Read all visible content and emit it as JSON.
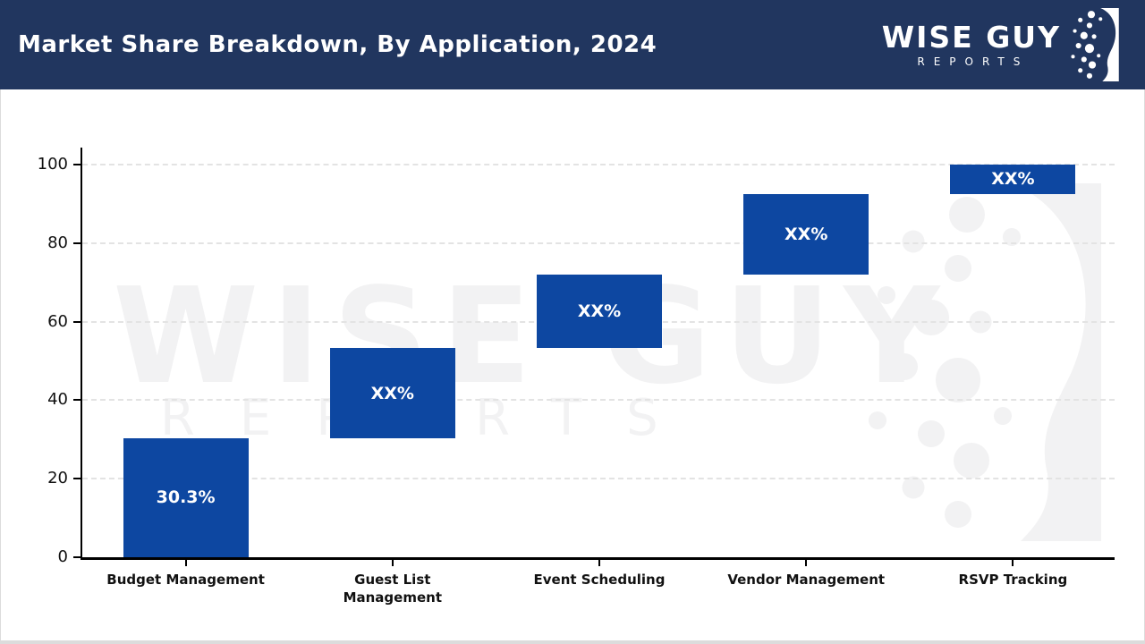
{
  "header": {
    "title": "Market Share Breakdown, By Application, 2024",
    "bg_color": "#21365f",
    "text_color": "#ffffff",
    "logo": {
      "primary": "WISE GUY",
      "secondary": "REPORTS"
    }
  },
  "watermark": {
    "primary": "WISE GUY",
    "secondary": "REPORTS"
  },
  "chart_data": {
    "type": "bar",
    "subtype": "floating-segment-waterfall",
    "title": "Market Share Breakdown, By Application, 2024",
    "categories": [
      "Budget Management",
      "Guest List\nManagement",
      "Event Scheduling",
      "Vendor Management",
      "RSVP Tracking"
    ],
    "series": [
      {
        "name": "Market Share (%)",
        "segments": [
          {
            "category": "Budget Management",
            "start": 0,
            "end": 30.3,
            "label": "30.3%"
          },
          {
            "category": "Guest List Management",
            "start": 30.3,
            "end": 53.2,
            "label": "XX%"
          },
          {
            "category": "Event Scheduling",
            "start": 53.2,
            "end": 72.0,
            "label": "XX%"
          },
          {
            "category": "Vendor Management",
            "start": 72.0,
            "end": 92.5,
            "label": "XX%"
          },
          {
            "category": "RSVP Tracking",
            "start": 92.5,
            "end": 100,
            "label": "XX%"
          }
        ]
      }
    ],
    "xlabel": "",
    "ylabel": "",
    "yticks": [
      0,
      20,
      40,
      60,
      80,
      100
    ],
    "ylim": [
      0,
      105
    ],
    "grid": "horizontal-dashed",
    "gridline_color": "#e3e3e3",
    "axis_color": "#000000",
    "bar_color": "#0d47a1",
    "bar_label_color": "#ffffff",
    "legend": "none"
  }
}
